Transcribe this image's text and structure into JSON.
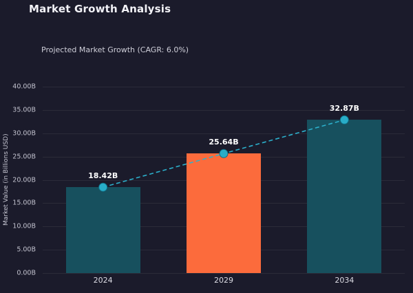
{
  "header": {
    "title": "Market Growth Analysis",
    "subtitle": "Projected Market Growth (CAGR: 6.0%)"
  },
  "chart_data": {
    "type": "bar",
    "title": "Market Growth Analysis",
    "subtitle": "Projected Market Growth (CAGR: 6.0%)",
    "categories": [
      "2024",
      "2029",
      "2034"
    ],
    "values": [
      18.42,
      25.64,
      32.87
    ],
    "value_labels": [
      "18.42B",
      "25.64B",
      "32.87B"
    ],
    "xlabel": "",
    "ylabel": "Market Value (in Billions USD)",
    "ylim": [
      0,
      40
    ],
    "ytick_step": 5,
    "ytick_labels": [
      "0.00B",
      "5.00B",
      "10.00B",
      "15.00B",
      "20.00B",
      "25.00B",
      "30.00B",
      "35.00B",
      "40.00B"
    ],
    "grid": true,
    "legend": "none",
    "bar_colors": [
      "#17505e",
      "#fc6b3c",
      "#17505e"
    ],
    "trend_line": {
      "style": "dashed",
      "color": "#2cb1cd",
      "markers": true,
      "marker_color": "#28adc8"
    }
  },
  "colors": {
    "background": "#1b1b2b",
    "title_text": "#f2f2f7",
    "subtitle_text": "#cfcfd9",
    "axis_text": "#c2c2ce",
    "value_label_text": "#ffffff"
  }
}
